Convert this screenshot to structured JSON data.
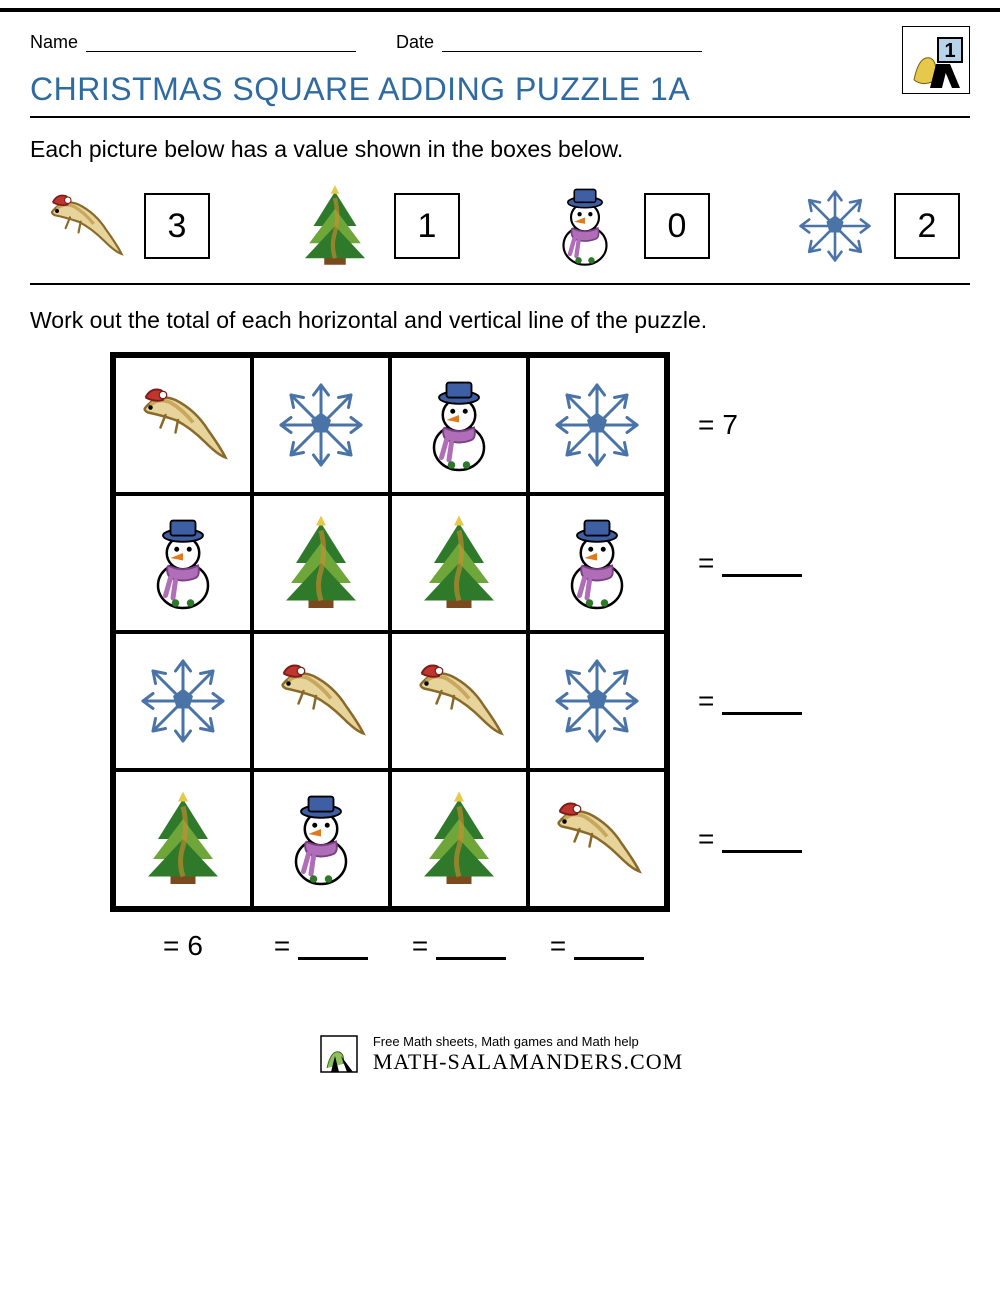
{
  "header": {
    "name_label": "Name",
    "date_label": "Date",
    "grade_badge": "1"
  },
  "title": "CHRISTMAS SQUARE ADDING PUZZLE 1A",
  "title_color": "#2f6aa0",
  "instruction1": "Each picture below has a value shown in the boxes below.",
  "instruction2": "Work out the total of each horizontal and vertical line of the puzzle.",
  "legend": [
    {
      "icon": "salamander",
      "value": "3"
    },
    {
      "icon": "tree",
      "value": "1"
    },
    {
      "icon": "snowman",
      "value": "0"
    },
    {
      "icon": "snowflake",
      "value": "2"
    }
  ],
  "grid": {
    "rows": 4,
    "cols": 4,
    "cells": [
      [
        "salamander",
        "snowflake",
        "snowman",
        "snowflake"
      ],
      [
        "snowman",
        "tree",
        "tree",
        "snowman"
      ],
      [
        "snowflake",
        "salamander",
        "salamander",
        "snowflake"
      ],
      [
        "tree",
        "snowman",
        "tree",
        "salamander"
      ]
    ],
    "row_answers": [
      "7",
      "",
      "",
      ""
    ],
    "col_answers": [
      "6",
      "",
      "",
      ""
    ]
  },
  "colors": {
    "snowflake": "#4a73a8",
    "tree_green1": "#2e7a2a",
    "tree_green2": "#6fa63a",
    "tree_brown": "#7a4a1e",
    "tree_star": "#e6c94a",
    "snowman_hat": "#3e5fa3",
    "snowman_scarf": "#b06db8",
    "snowman_nose": "#e07a1e",
    "sal_body1": "#e6d49a",
    "sal_body2": "#c9a85e",
    "sal_hat": "#c1352f"
  },
  "footer": {
    "tagline": "Free Math sheets, Math games and Math help",
    "brand": "MATH-SALAMANDERS.COM"
  }
}
